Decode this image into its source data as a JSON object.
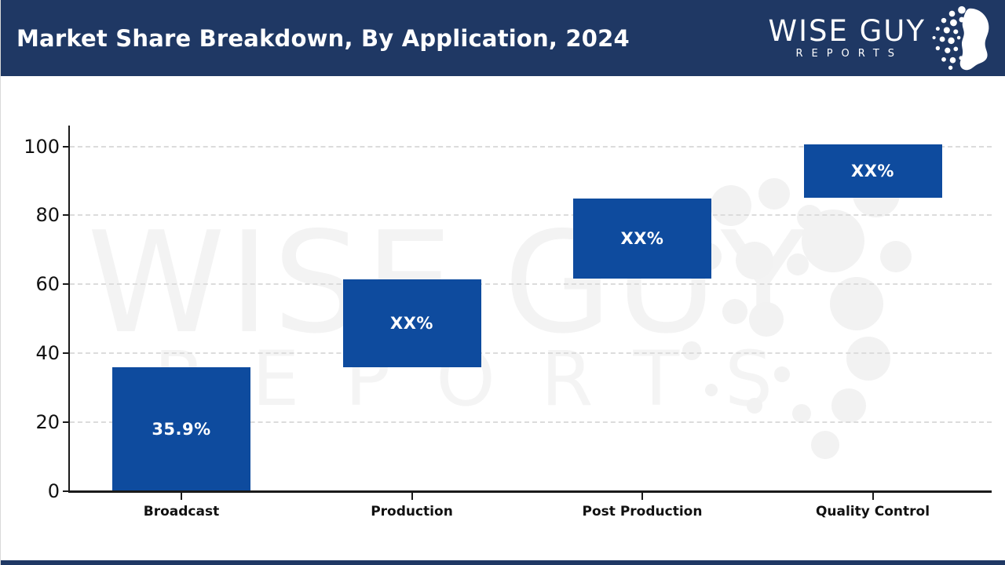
{
  "header": {
    "title": "Market Share Breakdown, By Application, 2024",
    "bg_color": "#1f3864",
    "logo": {
      "line1": "WISE GUY",
      "line2": "REPORTS"
    }
  },
  "watermark": {
    "line1": "WISE GUY",
    "line2": "REPORTS"
  },
  "chart_data": {
    "type": "bar",
    "subtype": "waterfall-floating-bars",
    "title": "Market Share Breakdown, By Application, 2024",
    "categories": [
      "Broadcast",
      "Production",
      "Post Production",
      "Quality Control"
    ],
    "segments": [
      {
        "category": "Broadcast",
        "start": 0,
        "end": 35.9,
        "label": "35.9%"
      },
      {
        "category": "Production",
        "start": 35.9,
        "end": 61.5,
        "label": "XX%"
      },
      {
        "category": "Post Production",
        "start": 61.7,
        "end": 84.8,
        "label": "XX%"
      },
      {
        "category": "Quality Control",
        "start": 85.2,
        "end": 100.5,
        "label": "XX%"
      }
    ],
    "xlabel": "",
    "ylabel": "",
    "yticks": [
      0,
      20,
      40,
      60,
      80,
      100
    ],
    "ylim": [
      0,
      106
    ],
    "grid": "horizontal-dashed",
    "legend": "none",
    "bar_color": "#0e4b9e",
    "bar_label_color": "#ffffff",
    "axis_color": "#1a1a1a",
    "gridline_color": "#dcdcdc"
  },
  "footer": {
    "bar_color": "#1f3864"
  }
}
